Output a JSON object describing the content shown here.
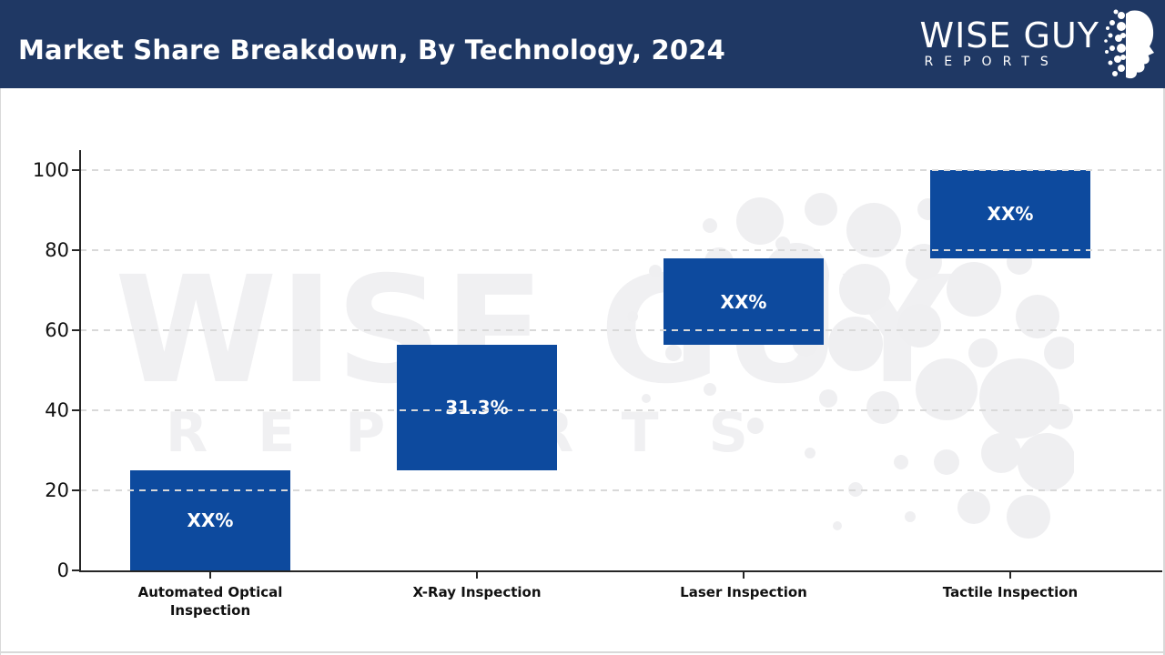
{
  "header": {
    "title": "Market Share Breakdown, By Technology, 2024",
    "logo": {
      "line1": "WISE GUY",
      "line2": "REPORTS"
    }
  },
  "watermark": {
    "line1": "WISE GUY",
    "line2": "REPORTS"
  },
  "chart_data": {
    "type": "bar",
    "variant": "waterfall",
    "title": "Market Share Breakdown, By Technology, 2024",
    "categories": [
      "Automated Optical Inspection",
      "X-Ray Inspection",
      "Laser Inspection",
      "Tactile Inspection"
    ],
    "segments": [
      {
        "category": "Automated Optical Inspection",
        "start": 0,
        "end": 25,
        "label": "XX%"
      },
      {
        "category": "X-Ray Inspection",
        "start": 25,
        "end": 56.3,
        "label": "31.3%"
      },
      {
        "category": "Laser Inspection",
        "start": 56.3,
        "end": 78,
        "label": "XX%"
      },
      {
        "category": "Tactile Inspection",
        "start": 78,
        "end": 100,
        "label": "XX%"
      }
    ],
    "yticks": [
      0,
      20,
      40,
      60,
      80,
      100
    ],
    "ylim": [
      0,
      105
    ],
    "xlabel": "",
    "ylabel": "",
    "grid": "horizontal-dashed",
    "legend": "none",
    "bar_color": "#0d4a9e",
    "bar_label_color": "#ffffff"
  },
  "colors": {
    "header_bg": "#1f3864",
    "bar": "#0d4a9e",
    "grid": "#d9d9d9",
    "axis": "#262626",
    "tick_label": "#111111",
    "watermark": "#f0f0f2",
    "page_bg": "#ffffff"
  }
}
